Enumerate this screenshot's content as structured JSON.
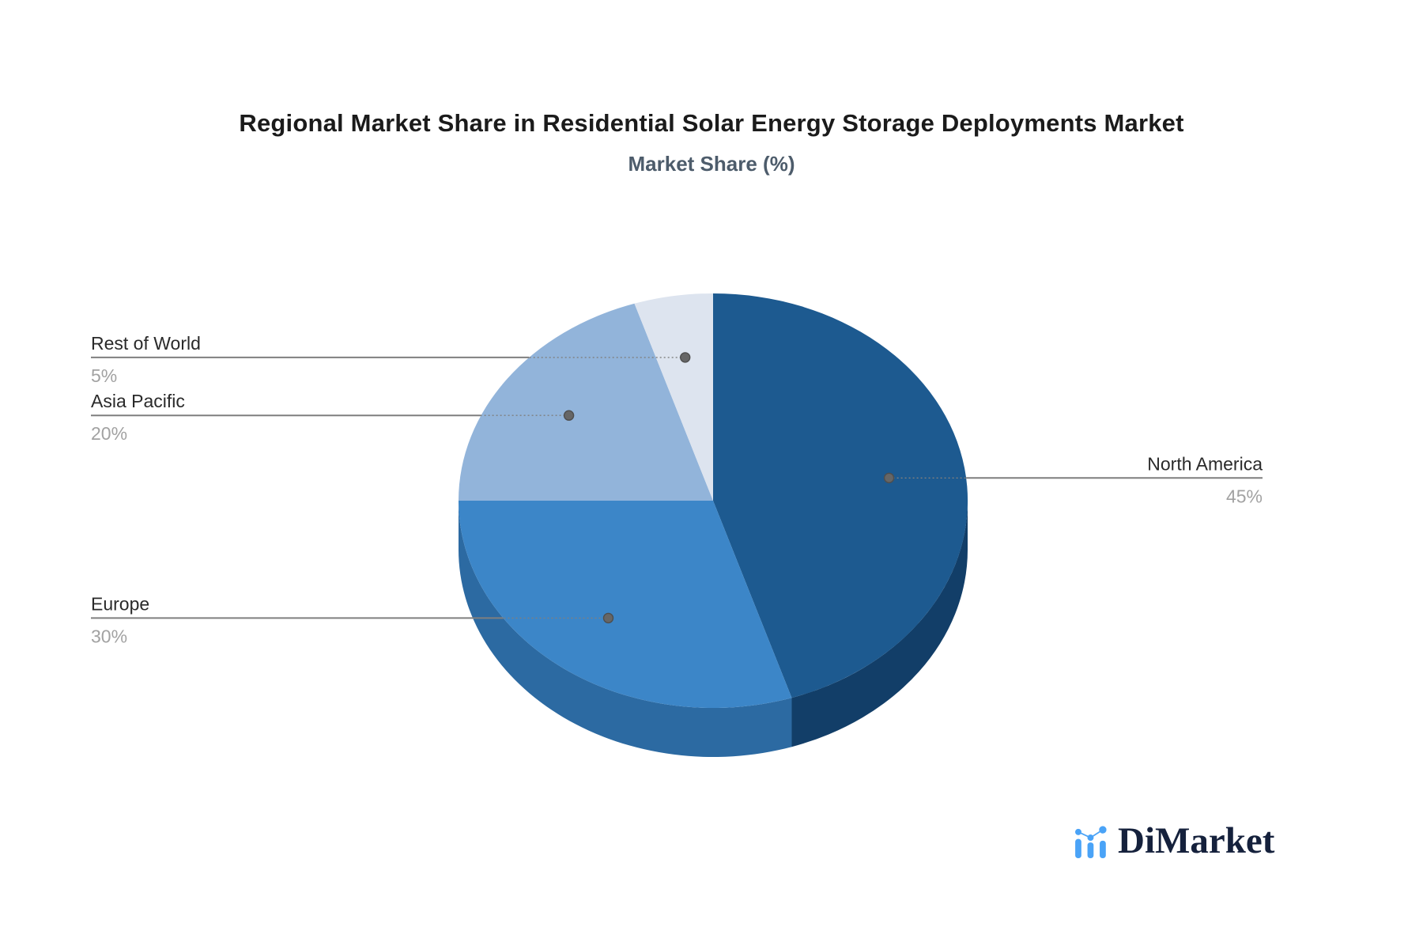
{
  "chart_data": {
    "type": "pie",
    "title": "Regional Market Share in Residential Solar Energy Storage Deployments Market",
    "subtitle": "Market Share (%)",
    "unit": "%",
    "labels": [
      "North America",
      "Europe",
      "Asia Pacific",
      "Rest of World"
    ],
    "values": [
      45,
      30,
      20,
      5
    ],
    "display_values": [
      "45%",
      "30%",
      "20%",
      "5%"
    ],
    "slice_colors": [
      "#1d5a90",
      "#3c86c8",
      "#92b4da",
      "#dde4ef"
    ],
    "slice_side_colors": [
      "#123e68",
      "#2c6aa2",
      "#6f9cc9",
      "#b9c6d9"
    ],
    "style": "3d-pie",
    "start_angle": "12-oclock",
    "direction": "clockwise",
    "legend_position": "none",
    "label_style": "leader-lines",
    "label_text_color": "#2a2a2a",
    "value_text_color": "#a2a2a2",
    "leader_line_color": "#7f7f7f",
    "leader_dot_color": "#666666"
  },
  "logo": {
    "text": "DiMarket",
    "icon": "bar-chart-trend-icon",
    "accent_color": "#4aa3f7",
    "text_color": "#15213c"
  }
}
